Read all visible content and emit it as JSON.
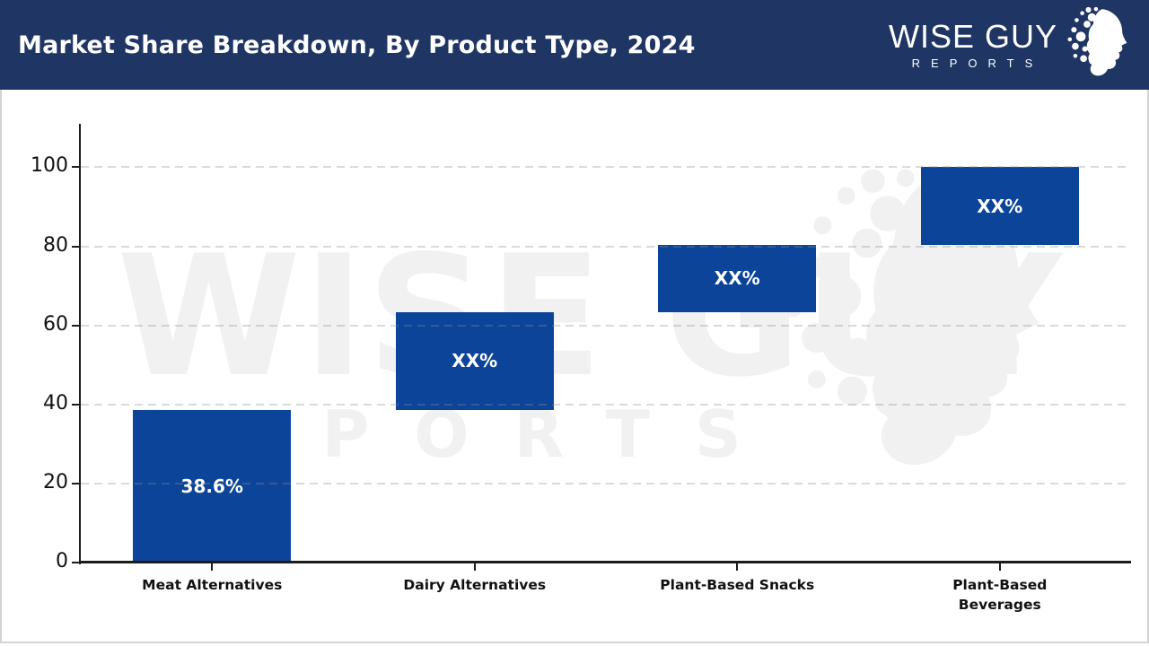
{
  "header": {
    "title": "Market Share Breakdown, By Product Type, 2024",
    "bg_color": "#1f3563",
    "logo": {
      "line1": "WISE GUY",
      "line2": "REPORTS",
      "head_icon": "dotted-head-profile"
    }
  },
  "watermark": {
    "line1": "WISE GUY",
    "line2": "REPORTS",
    "color": "#f1f1f1"
  },
  "chart_data": {
    "type": "bar",
    "subtype": "waterfall",
    "title": "Market Share Breakdown, By Product Type, 2024",
    "categories": [
      "Meat Alternatives",
      "Dairy Alternatives",
      "Plant-Based Snacks",
      "Plant-Based\nBeverages"
    ],
    "segments": [
      {
        "category": "Meat Alternatives",
        "start": 0,
        "end": 38.6,
        "label": "38.6%"
      },
      {
        "category": "Dairy Alternatives",
        "start": 38.6,
        "end": 63.4,
        "label": "XX%"
      },
      {
        "category": "Plant-Based Snacks",
        "start": 63.4,
        "end": 80.3,
        "label": "XX%"
      },
      {
        "category": "Plant-Based Beverages",
        "start": 80.3,
        "end": 100,
        "label": "XX%"
      }
    ],
    "yticks": [
      0,
      20,
      40,
      60,
      80,
      100
    ],
    "ylim": [
      0,
      111
    ],
    "xlabel": "",
    "ylabel": "",
    "grid": "dashed-horizontal",
    "legend": "none",
    "bar_color": "#0c4499",
    "label_color": "#ffffff",
    "axis_color": "#1c1c1c"
  }
}
